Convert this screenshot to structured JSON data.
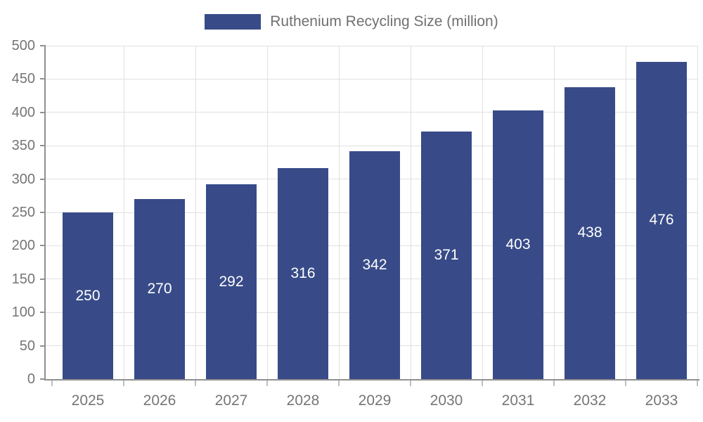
{
  "chart_data": {
    "type": "bar",
    "title": "Ruthenium Recycling Size (million)",
    "legend_entries": [
      "Ruthenium Recycling Size (million)"
    ],
    "legend_position": "top-center",
    "categories": [
      "2025",
      "2026",
      "2027",
      "2028",
      "2029",
      "2030",
      "2031",
      "2032",
      "2033"
    ],
    "values": [
      250,
      270,
      292,
      316,
      342,
      371,
      403,
      438,
      476
    ],
    "xlabel": "",
    "ylabel": "",
    "ylim": [
      0,
      500
    ],
    "yticks": [
      0,
      50,
      100,
      150,
      200,
      250,
      300,
      350,
      400,
      450,
      500
    ],
    "grid": true,
    "bar_labels_inside": true,
    "colors": {
      "bar": "#384b88",
      "grid_line": "#e0e0e0",
      "axis_line": "#909090",
      "x_tick": "#bfbfbf",
      "tick_text": "#757575",
      "legend_text": "#707070",
      "bar_label_text": "#ffffff",
      "background": "#ffffff"
    }
  }
}
